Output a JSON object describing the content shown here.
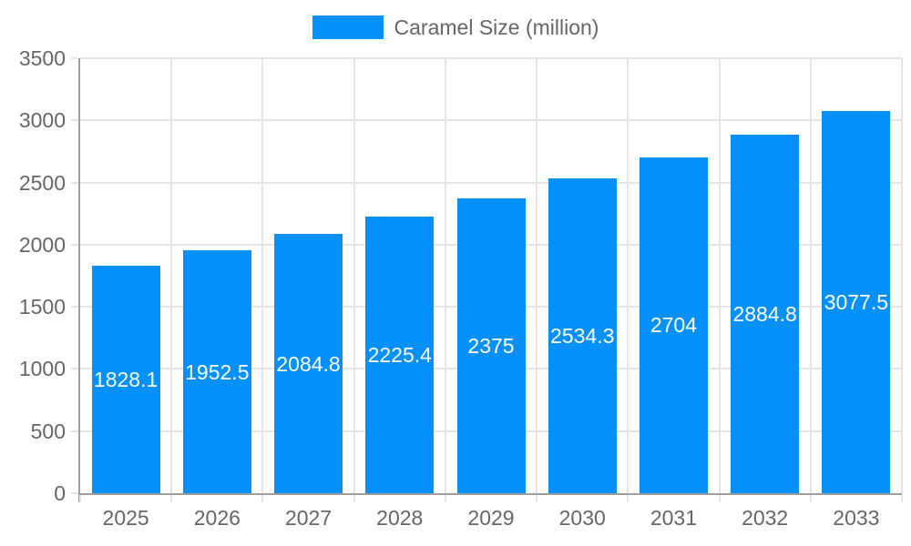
{
  "legend": {
    "label": "Caramel Size (million)"
  },
  "chart_data": {
    "type": "bar",
    "title": "",
    "legend": "Caramel Size (million)",
    "legend_position": "top",
    "categories": [
      "2025",
      "2026",
      "2027",
      "2028",
      "2029",
      "2030",
      "2031",
      "2032",
      "2033"
    ],
    "values": [
      1828.1,
      1952.5,
      2084.8,
      2225.4,
      2375,
      2534.3,
      2704,
      2884.8,
      3077.5
    ],
    "bar_labels": [
      "1828.1",
      "1952.5",
      "2084.8",
      "2225.4",
      "2375",
      "2534.3",
      "2704",
      "2884.8",
      "3077.5"
    ],
    "xlabel": "",
    "ylabel": "",
    "ylim": [
      0,
      3500
    ],
    "ytick_step": 500,
    "yticks": [
      0,
      500,
      1000,
      1500,
      2000,
      2500,
      3000,
      3500
    ],
    "grid": true,
    "colors": {
      "bar": "#0590fa",
      "bar_label": "#ffffff",
      "axis_line": "#9e9e9e",
      "gridline": "#e5e5e5",
      "tick_label": "#666666"
    }
  }
}
